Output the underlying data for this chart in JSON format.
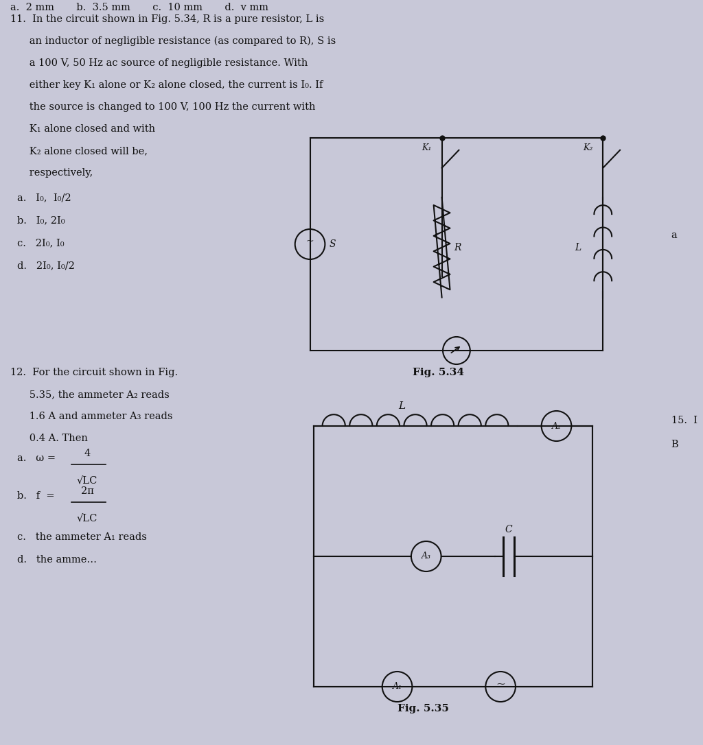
{
  "bg_color": "#c8c8d8",
  "text_color": "#111111",
  "line_color": "#111111",
  "fig_width": 10.24,
  "fig_height": 10.86,
  "q11_text": [
    "11.  In the circuit shown in Fig. 5.34, R is a pure resistor, L is",
    "      an inductor of negligible resistance (as compared to R), S is",
    "      a 100 V, 50 Hz ac source of negligible resistance. With",
    "      either key K₁ alone or K₂ alone closed, the current is I₀. If",
    "      the source is changed to 100 V, 100 Hz the current with",
    "      K₁ alone closed and with",
    "      K₂ alone closed will be,",
    "      respectively,"
  ],
  "q11_options": [
    "a.   I₀,  I₀/2",
    "b.   I₀, 2I₀",
    "c.   2I₀, I₀",
    "d.   2I₀, I₀/2"
  ],
  "q12_text": [
    "12.  For the circuit shown in Fig.",
    "      5.35, the ammeter A₂ reads",
    "      1.6 A and ammeter A₃ reads",
    "      0.4 A. Then"
  ],
  "q12_options": [
    "a.   ω = 4/√LC",
    "b.   f = 2π/√LC",
    "c.   the ammeter A₁ reads",
    "d.   the amme…"
  ],
  "fig534_label": "Fig. 5.34",
  "fig535_label": "Fig. 5.35",
  "side_label": "15.  I\nB"
}
